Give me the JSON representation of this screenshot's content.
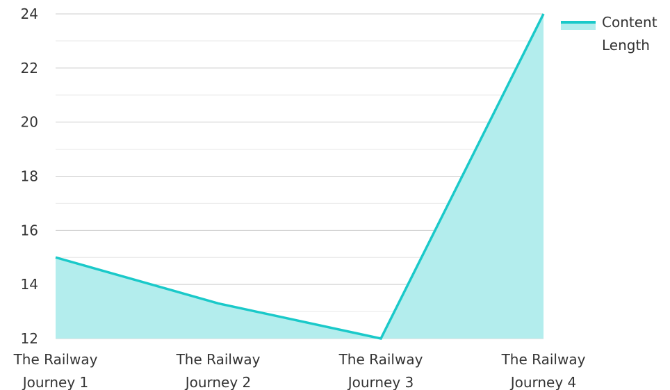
{
  "chart_data": {
    "type": "area",
    "categories": [
      [
        "The Railway",
        "Journey 1"
      ],
      [
        "The Railway",
        "Journey 2"
      ],
      [
        "The Railway",
        "Journey 3"
      ],
      [
        "The Railway",
        "Journey 4"
      ]
    ],
    "series": [
      {
        "name": "Content Length",
        "values": [
          15,
          13.3,
          12,
          24
        ]
      }
    ],
    "y_ticks": [
      "24",
      "22",
      "20",
      "18",
      "16",
      "14",
      "12"
    ],
    "ylim": [
      12,
      24
    ],
    "grid": true,
    "legend": {
      "position": "top-right",
      "lines": [
        "Content",
        "Length"
      ]
    },
    "colors": {
      "line": "#1ac9c9",
      "fill": "#b3eded",
      "grid_major": "#cccccc",
      "grid_minor": "#e6e6e6"
    }
  }
}
